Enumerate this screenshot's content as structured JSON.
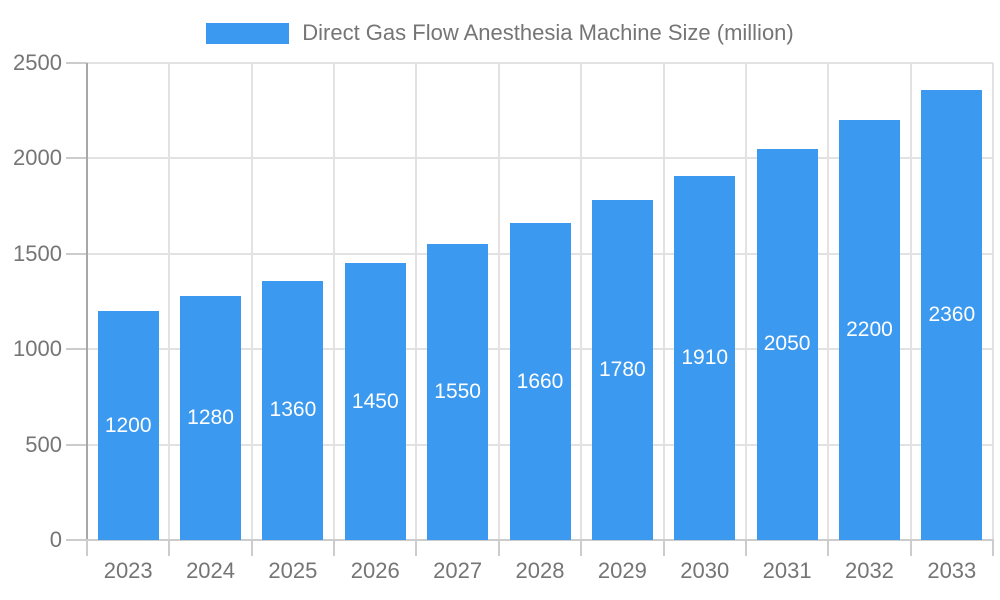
{
  "chart_data": {
    "type": "bar",
    "title": "Direct Gas Flow Anesthesia Machine Size (million)",
    "legend": {
      "label": "Direct Gas Flow Anesthesia Machine Size (million)",
      "position": "top-center"
    },
    "categories": [
      "2023",
      "2024",
      "2025",
      "2026",
      "2027",
      "2028",
      "2029",
      "2030",
      "2031",
      "2032",
      "2033"
    ],
    "values": [
      1200,
      1280,
      1360,
      1450,
      1550,
      1660,
      1780,
      1910,
      2050,
      2200,
      2360
    ],
    "value_labels": [
      "1200",
      "1280",
      "1360",
      "1450",
      "1550",
      "1660",
      "1780",
      "1910",
      "2050",
      "2200",
      "2360"
    ],
    "xlabel": "",
    "ylabel": "",
    "ylim": [
      0,
      2500
    ],
    "y_ticks": [
      0,
      500,
      1000,
      1500,
      2000,
      2500
    ],
    "y_tick_labels": [
      "0",
      "500",
      "1000",
      "1500",
      "2000",
      "2500"
    ],
    "grid": true,
    "value_label_position": "inside-center",
    "colors": {
      "bar": "#3B99F0",
      "bar_label_text": "#FFFFFF",
      "axis_text": "#757575",
      "legend_text": "#757575",
      "gridline": "#E2E2E2",
      "y_axis_line": "#A8A8A8",
      "x_axis_line": "#CCCCCC",
      "tick": "#CCCCCC",
      "background": "#FFFFFF"
    }
  }
}
